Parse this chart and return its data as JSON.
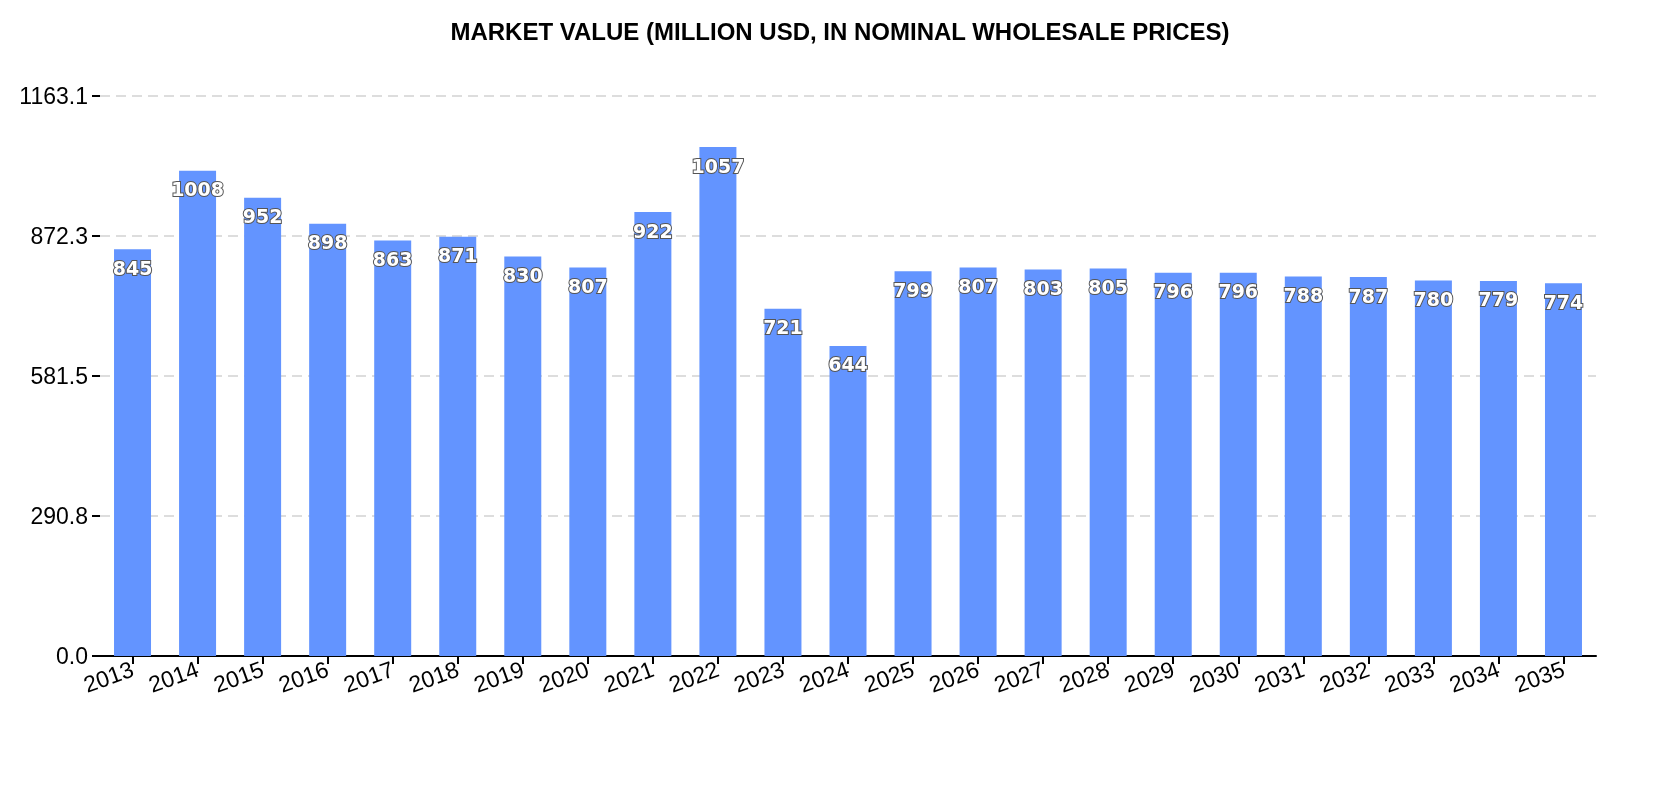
{
  "chart_data": {
    "type": "bar",
    "title": "MARKET VALUE (MILLION USD, IN NOMINAL WHOLESALE PRICES)",
    "categories": [
      "2013",
      "2014",
      "2015",
      "2016",
      "2017",
      "2018",
      "2019",
      "2020",
      "2021",
      "2022",
      "2023",
      "2024",
      "2025",
      "2026",
      "2027",
      "2028",
      "2029",
      "2030",
      "2031",
      "2032",
      "2033",
      "2034",
      "2035"
    ],
    "values": [
      845,
      1008,
      952,
      898,
      863,
      871,
      830,
      807,
      922,
      1057,
      721,
      644,
      799,
      807,
      803,
      805,
      796,
      796,
      788,
      787,
      780,
      779,
      774
    ],
    "color": "#6394ff",
    "ylim": [
      0,
      1163.1
    ],
    "yticks": [
      {
        "value": 0,
        "label": "0.0"
      },
      290.8,
      581.5,
      872.3,
      1163.1
    ],
    "grid": "y",
    "data_labels": true
  }
}
